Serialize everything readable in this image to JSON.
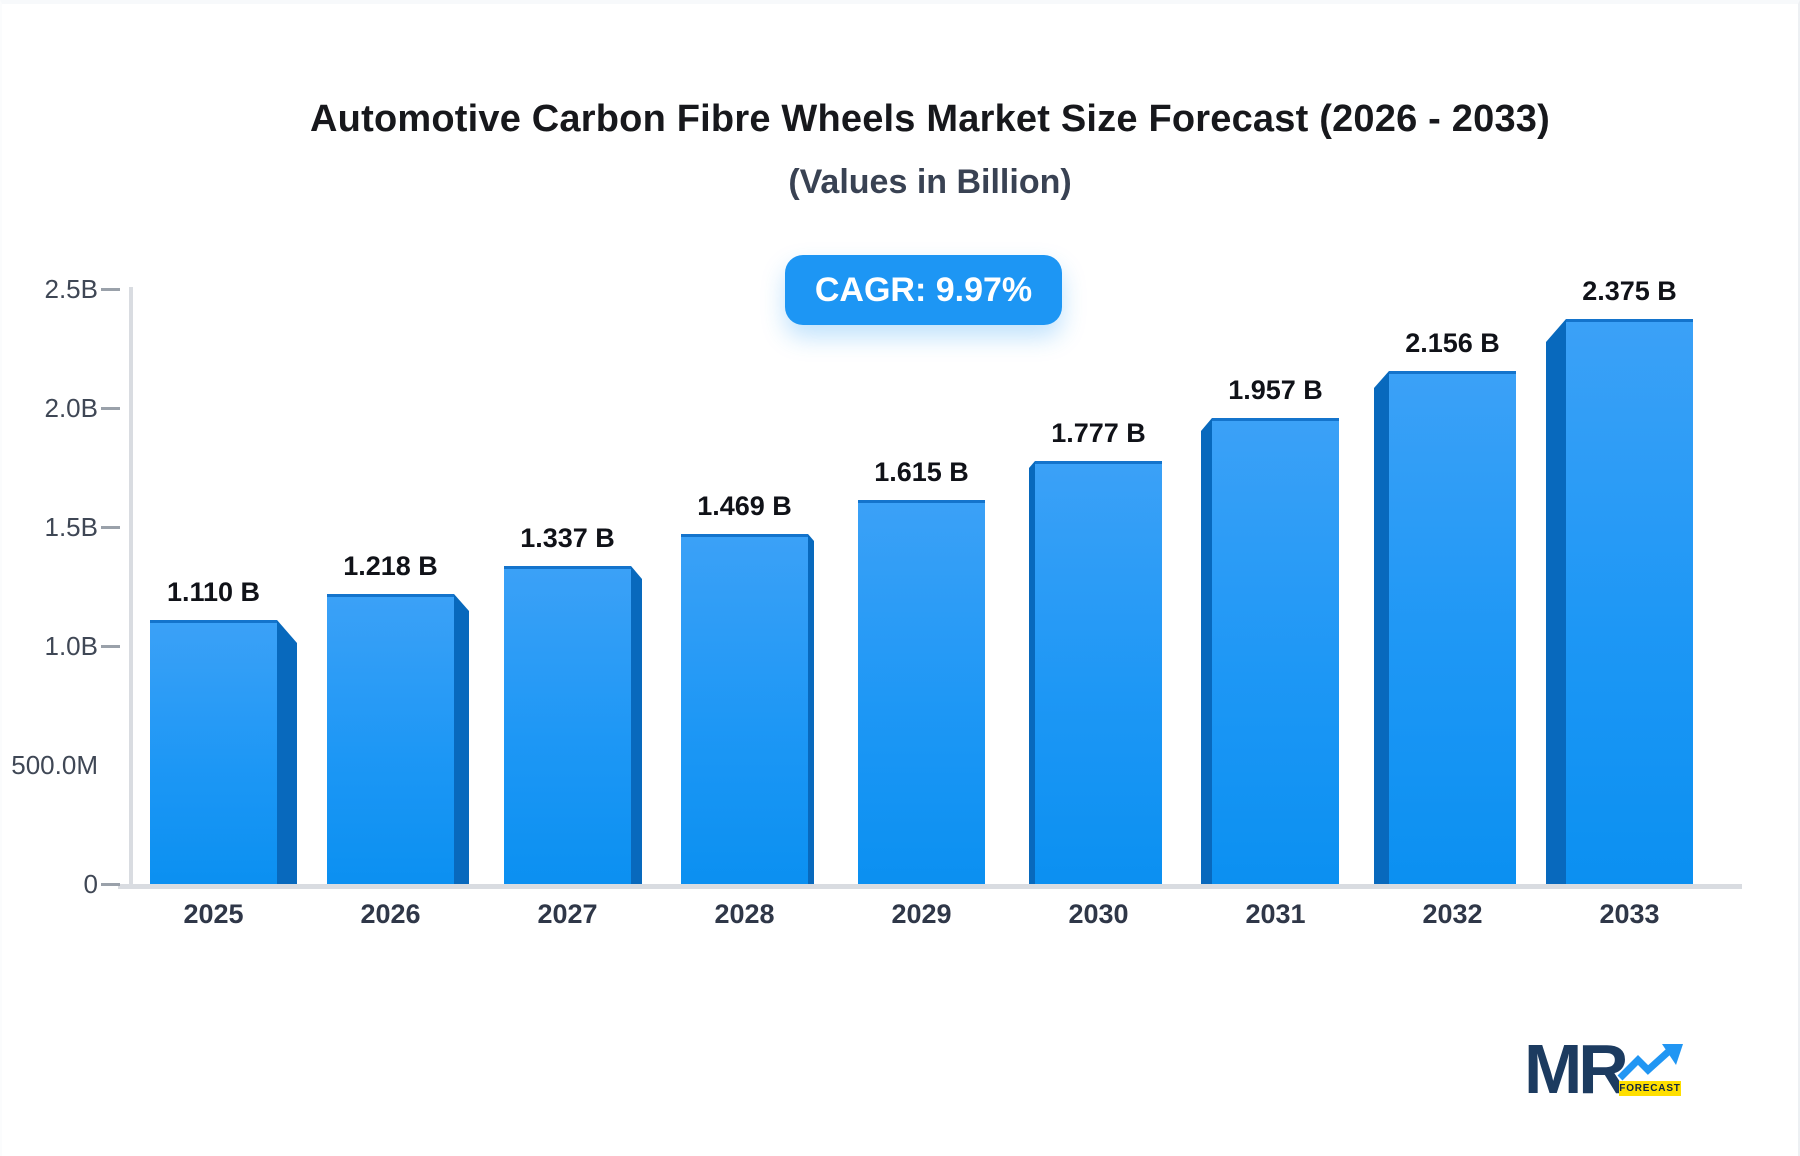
{
  "chart_data": {
    "type": "bar",
    "title": "Automotive Carbon Fibre Wheels Market Size Forecast (2026 - 2033)",
    "subtitle": "(Values in Billion)",
    "annotation": "CAGR: 9.97%",
    "categories": [
      "2025",
      "2026",
      "2027",
      "2028",
      "2029",
      "2030",
      "2031",
      "2032",
      "2033"
    ],
    "series": [
      {
        "name": "Market Size",
        "values": [
          1.11,
          1.218,
          1.337,
          1.469,
          1.615,
          1.777,
          1.957,
          2.156,
          2.375
        ]
      }
    ],
    "value_labels": [
      "1.110 B",
      "1.218 B",
      "1.337 B",
      "1.469 B",
      "1.615 B",
      "1.777 B",
      "1.957 B",
      "2.156 B",
      "2.375 B"
    ],
    "unit": "B",
    "xlabel": "",
    "ylabel": "",
    "ylim": [
      0,
      2.5
    ],
    "ytick_labels": [
      "2.5B",
      "2.0B",
      "1.5B",
      "1.0B",
      "500.0M",
      "0"
    ],
    "ytick_values": [
      2.5,
      2.0,
      1.5,
      1.0,
      0.5,
      0
    ],
    "grid": false,
    "legend": "none",
    "bar_style": "3d",
    "colors": {
      "bar_face_top": "#3BA1F7",
      "bar_face_bottom": "#0B90F1",
      "bar_side": "#0869BD",
      "bar_top_edge": "#1474CC",
      "axis": "#D9DCE1",
      "tick_dash": "#9AA1AA",
      "badge_bg": "#1D96F4",
      "badge_text": "#FFFFFF",
      "title_text": "#17181C",
      "subtitle_text": "#394253"
    }
  },
  "logo": {
    "name": "MR Forecast",
    "text": "MR",
    "badge": "FORECAST",
    "colors": {
      "mr": "#1C3B60",
      "arrow": "#2196F3",
      "badge_bg": "#FFDF00",
      "badge_text": "#132741"
    }
  }
}
